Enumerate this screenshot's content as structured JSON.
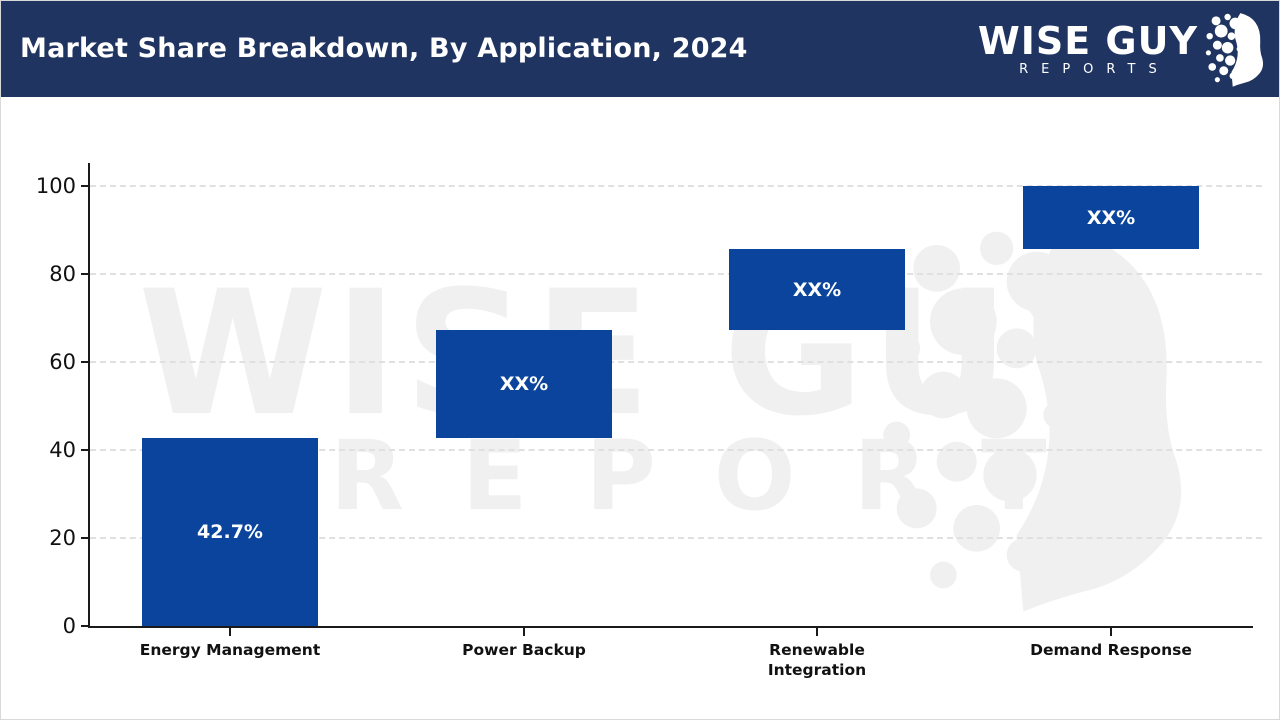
{
  "header": {
    "title": "Market Share Breakdown, By Application, 2024",
    "logo": {
      "line1": "WISE GUY",
      "line2": "REPORTS"
    }
  },
  "watermark": {
    "line1": "WISE GUY",
    "line2": "REPORTS"
  },
  "colors": {
    "header_bg": "#1f3460",
    "bar": "#0a449c",
    "bar_label": "#ffffff",
    "axis": "#1a1a1a",
    "grid": "#e0e0e0",
    "watermark": "#f0f0f1"
  },
  "chart_data": {
    "type": "bar",
    "subtype": "waterfall",
    "title": "Market Share Breakdown, By Application, 2024",
    "categories": [
      "Energy Management",
      "Power Backup",
      "Renewable\nIntegration",
      "Demand Response"
    ],
    "segments": [
      {
        "category": "Energy Management",
        "start": 0,
        "end": 42.7,
        "label": "42.7%"
      },
      {
        "category": "Power Backup",
        "start": 42.7,
        "end": 67.3,
        "label": "XX%"
      },
      {
        "category": "Renewable Integration",
        "start": 67.3,
        "end": 85.6,
        "label": "XX%"
      },
      {
        "category": "Demand Response",
        "start": 85.6,
        "end": 100,
        "label": "XX%"
      }
    ],
    "yticks": [
      0,
      20,
      40,
      60,
      80,
      100
    ],
    "ylim": [
      0,
      105
    ],
    "grid": "horizontal-dashed",
    "legend": "none",
    "bar_color": "#0a449c",
    "value_label_color": "#ffffff"
  }
}
